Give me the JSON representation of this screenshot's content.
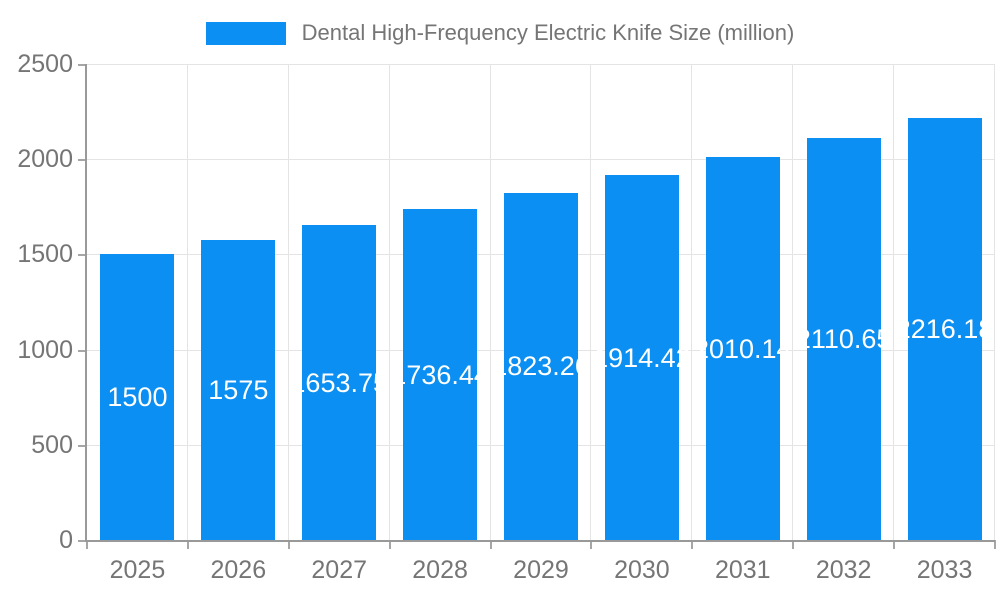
{
  "chart_data": {
    "type": "bar",
    "title": "Dental High-Frequency Electric Knife Size (million)",
    "legend": {
      "position": "top",
      "entries": [
        "Dental High-Frequency Electric Knife Size (million)"
      ]
    },
    "categories": [
      "2025",
      "2026",
      "2027",
      "2028",
      "2029",
      "2030",
      "2031",
      "2032",
      "2033"
    ],
    "series": [
      {
        "name": "Dental High-Frequency Electric Knife Size (million)",
        "values": [
          1500,
          1575,
          1653.75,
          1736.44,
          1823.26,
          1914.42,
          2010.14,
          2110.65,
          2216.18
        ],
        "value_labels": [
          "1500",
          "1575",
          "1653.75",
          "1736.44",
          "1823.26",
          "1914.42",
          "2010.14",
          "2110.65",
          "2216.18"
        ]
      }
    ],
    "xlabel": "",
    "ylabel": "",
    "ylim": [
      0,
      2500
    ],
    "y_ticks": [
      0,
      500,
      1000,
      1500,
      2000,
      2500
    ],
    "grid": true,
    "value_labels_inside_bars": true,
    "colors": {
      "bar": "#0b8ff2",
      "grid": "#e4e4e4",
      "axis": "#999999",
      "tick_text": "#757575",
      "title_text": "#757575",
      "value_text": "#ffffff",
      "background": "#ffffff"
    }
  }
}
